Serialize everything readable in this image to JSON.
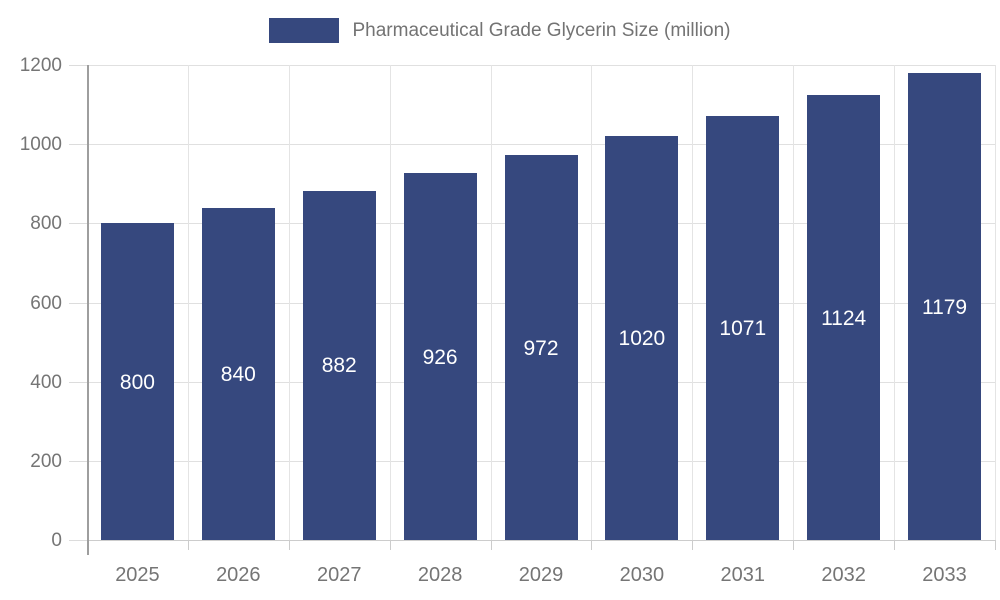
{
  "legend": {
    "label": "Pharmaceutical Grade Glycerin Size (million)",
    "swatch_color": "#36487e"
  },
  "chart_data": {
    "type": "bar",
    "title": "Pharmaceutical Grade Glycerin Size (million)",
    "categories": [
      "2025",
      "2026",
      "2027",
      "2028",
      "2029",
      "2030",
      "2031",
      "2032",
      "2033"
    ],
    "series": [
      {
        "name": "Pharmaceutical Grade Glycerin Size (million)",
        "values": [
          800,
          840,
          882,
          926,
          972,
          1020,
          1071,
          1124,
          1179
        ]
      }
    ],
    "xlabel": "",
    "ylabel": "",
    "ylim": [
      0,
      1200
    ],
    "yticks": [
      0,
      200,
      400,
      600,
      800,
      1000,
      1200
    ],
    "grid": true,
    "legend_position": "top",
    "bar_labels_inside": true,
    "colors": {
      "bar": "#36487e",
      "bar_label": "#ffffff",
      "axis_text": "#757575",
      "gridline": "#e0e0e0",
      "axis_line": "#9e9e9e",
      "background": "#ffffff"
    }
  }
}
